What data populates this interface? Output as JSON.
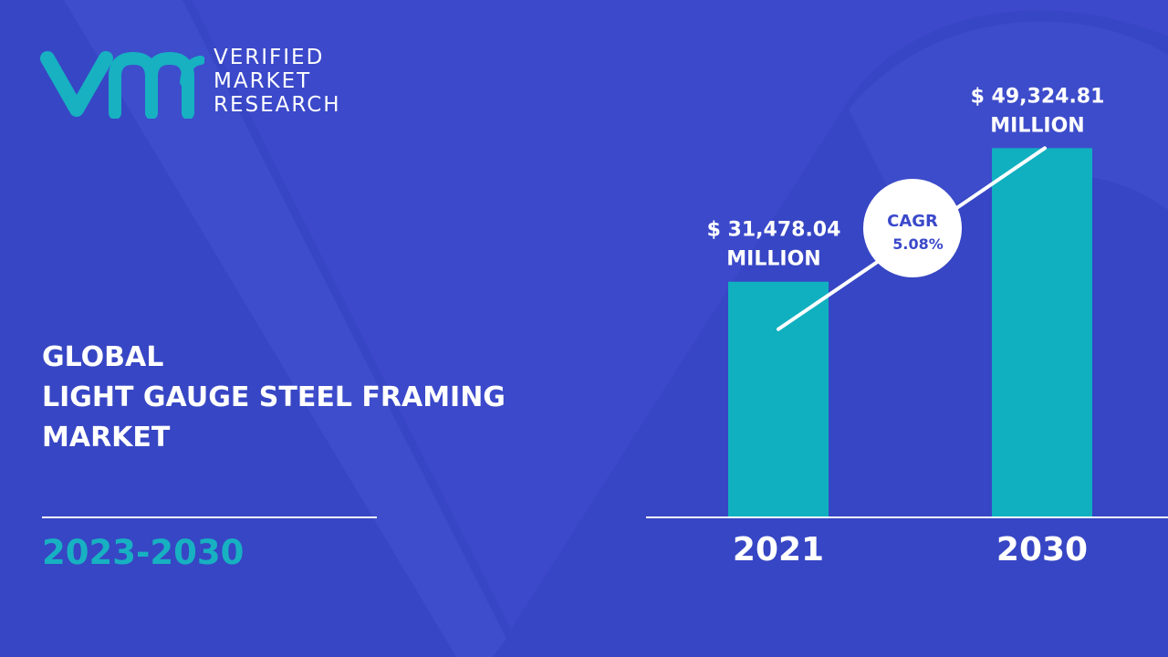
{
  "brand": {
    "logo_lines": [
      "VERIFIED",
      "MARKET",
      "RESEARCH"
    ]
  },
  "title": {
    "lines": [
      "GLOBAL",
      "LIGHT GAUGE STEEL FRAMING",
      "MARKET"
    ]
  },
  "period": "2023-2030",
  "colors": {
    "background": "#3b49ca",
    "bar": "#10b0c0",
    "accent_text": "#17b1c2",
    "cagr_text": "#3b49ca"
  },
  "chart_data": {
    "type": "bar",
    "categories": [
      "2021",
      "2030"
    ],
    "values": [
      31478.04,
      49324.81
    ],
    "value_labels": [
      [
        "$ 31,478.04",
        "MILLION"
      ],
      [
        "$ 49,324.81",
        "MILLION"
      ]
    ],
    "annotation": {
      "label": "CAGR",
      "value": "5.08%"
    },
    "title": "",
    "xlabel": "",
    "ylabel": "",
    "ylim": [
      0,
      55000
    ],
    "grid": false
  }
}
